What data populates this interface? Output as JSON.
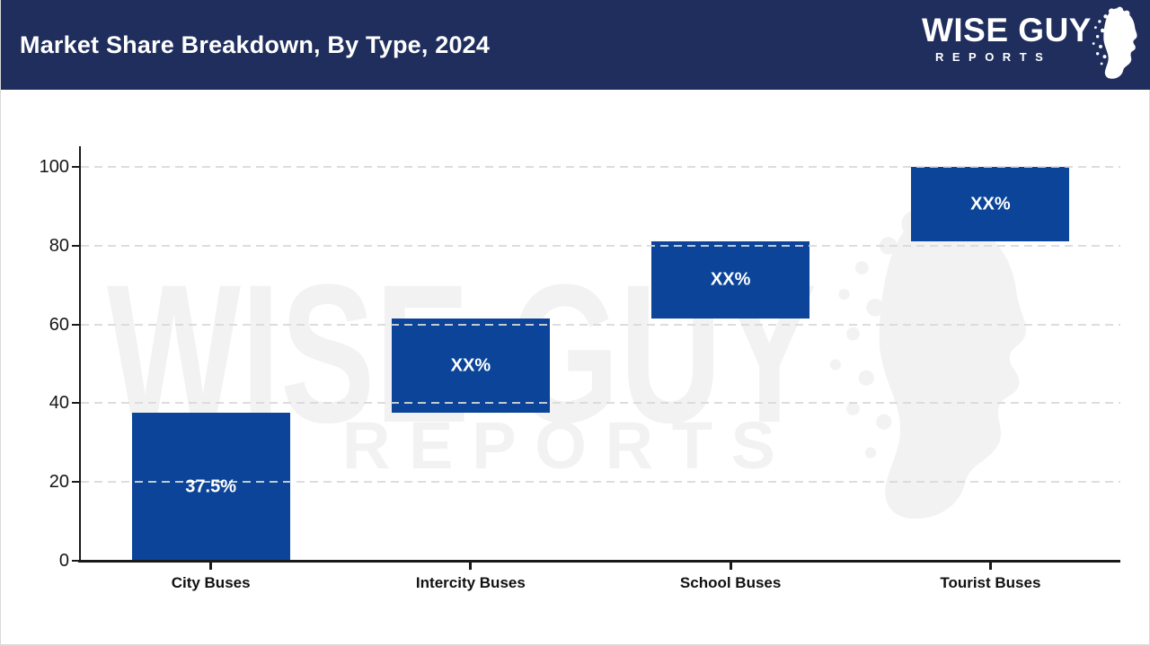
{
  "header": {
    "title": "Market Share Breakdown, By Type, 2024",
    "logo": {
      "line1": "WISE GUY",
      "line2": "REPORTS"
    }
  },
  "watermark": {
    "line1": "WISE GUY",
    "line2": "REPORTS"
  },
  "colors": {
    "header_bg": "#1f2e5c",
    "bar": "#0b4499",
    "bar_label": "#ffffff",
    "watermark": "#f2f2f2",
    "gridline": "#d9d9d9",
    "axis": "#1a1a1a"
  },
  "chart_data": {
    "type": "bar",
    "subtype": "waterfall-floating-segments",
    "title": "Market Share Breakdown, By Type, 2024",
    "categories": [
      "City Buses",
      "Intercity Buses",
      "School Buses",
      "Tourist Buses"
    ],
    "segments": [
      {
        "category": "City Buses",
        "start": 0,
        "end": 37.5,
        "label": "37.5%"
      },
      {
        "category": "Intercity Buses",
        "start": 37.5,
        "end": 61.5,
        "label": "XX%"
      },
      {
        "category": "School Buses",
        "start": 61.5,
        "end": 81,
        "label": "XX%"
      },
      {
        "category": "Tourist Buses",
        "start": 81,
        "end": 100,
        "label": "XX%"
      }
    ],
    "values": [
      37.5,
      24,
      19.5,
      19
    ],
    "xlabel": "",
    "ylabel": "",
    "ylim": [
      0,
      100
    ],
    "yticks": [
      0,
      20,
      40,
      60,
      80,
      100
    ],
    "grid": "horizontal dashed, drawn over bars",
    "legend": "none"
  }
}
